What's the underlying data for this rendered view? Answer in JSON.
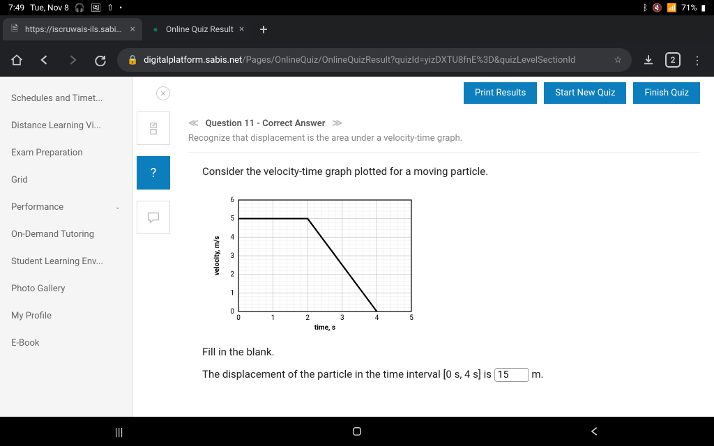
{
  "status": {
    "time": "7:49",
    "date": "Tue, Nov 8",
    "battery": "71%"
  },
  "tabs": [
    {
      "title": "https://iscruwais-ils.sabis.ne",
      "active": false
    },
    {
      "title": "Online Quiz Result",
      "active": true
    }
  ],
  "url": {
    "domain": "digitalplatform.sabis.net",
    "path": "/Pages/OnlineQuiz/OnlineQuizResult?quizId=yizDXTU8fnE%3D&quizLevelSectionId"
  },
  "sidebar": {
    "items": [
      {
        "label": "Schedules and Timet..."
      },
      {
        "label": "Distance Learning Vi..."
      },
      {
        "label": "Exam Preparation"
      },
      {
        "label": "Grid"
      },
      {
        "label": "Performance",
        "expandable": true
      },
      {
        "label": "On-Demand Tutoring"
      },
      {
        "label": "Student Learning Env..."
      },
      {
        "label": "Photo Gallery"
      },
      {
        "label": "My Profile"
      },
      {
        "label": "E-Book"
      }
    ]
  },
  "actions": {
    "print": "Print Results",
    "start": "Start New Quiz",
    "finish": "Finish Quiz"
  },
  "question": {
    "title": "Question 11 - Correct Answer",
    "subtitle": "Recognize that displacement is the area under a velocity-time graph.",
    "prompt": "Consider the velocity-time graph plotted for a moving particle.",
    "fill_label": "Fill in the blank.",
    "answer_prefix": "The displacement of the particle in the time interval [0 s, 4 s] is ",
    "answer_value": "15",
    "answer_suffix": " m."
  },
  "graph": {
    "type": "line",
    "xlabel": "time, s",
    "ylabel": "velocity, m/s",
    "xlim": [
      0,
      5
    ],
    "ylim": [
      0,
      6
    ],
    "xtick_step": 1,
    "ytick_step": 1,
    "points": [
      [
        0,
        5
      ],
      [
        2,
        5
      ],
      [
        4,
        0
      ]
    ],
    "line_color": "#000000",
    "line_width": 2.2,
    "grid_color": "#cccccc",
    "minor_grid_color": "#e8e8e8",
    "background_color": "#ffffff",
    "axis_color": "#000000",
    "label_fontsize": 10,
    "tick_fontsize": 10
  },
  "colors": {
    "accent": "#0d7ebd",
    "dark_bg": "#202124",
    "sidebar_bg": "#f5f5f5"
  }
}
